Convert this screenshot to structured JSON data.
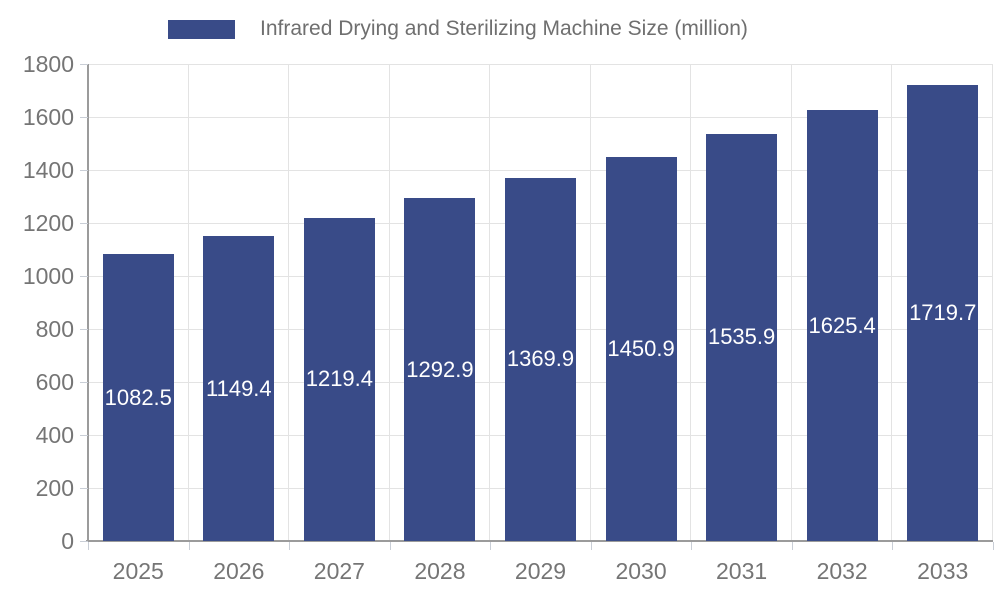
{
  "chart_data": {
    "type": "bar",
    "title": "Infrared Drying and Sterilizing Machine Size (million)",
    "categories": [
      "2025",
      "2026",
      "2027",
      "2028",
      "2029",
      "2030",
      "2031",
      "2032",
      "2033"
    ],
    "values": [
      1082.5,
      1149.4,
      1219.4,
      1292.9,
      1369.9,
      1450.9,
      1535.9,
      1625.4,
      1719.7
    ],
    "series_name": "Infrared Drying and Sterilizing Machine Size (million)",
    "xlabel": "",
    "ylabel": "",
    "ylim": [
      0,
      1800
    ],
    "yticks": [
      0,
      200,
      400,
      600,
      800,
      1000,
      1200,
      1400,
      1600,
      1800
    ],
    "grid": "on",
    "legend_position": "top",
    "value_labels": "inside-center",
    "colors": {
      "bar": "#394b88",
      "grid": "#e3e3e3",
      "axis": "#9b9b9b",
      "tick": "#c9ced6",
      "tick_label": "#757575",
      "legend_text": "#6f6f6f",
      "value_label": "#ffffff",
      "background": "#ffffff"
    }
  }
}
